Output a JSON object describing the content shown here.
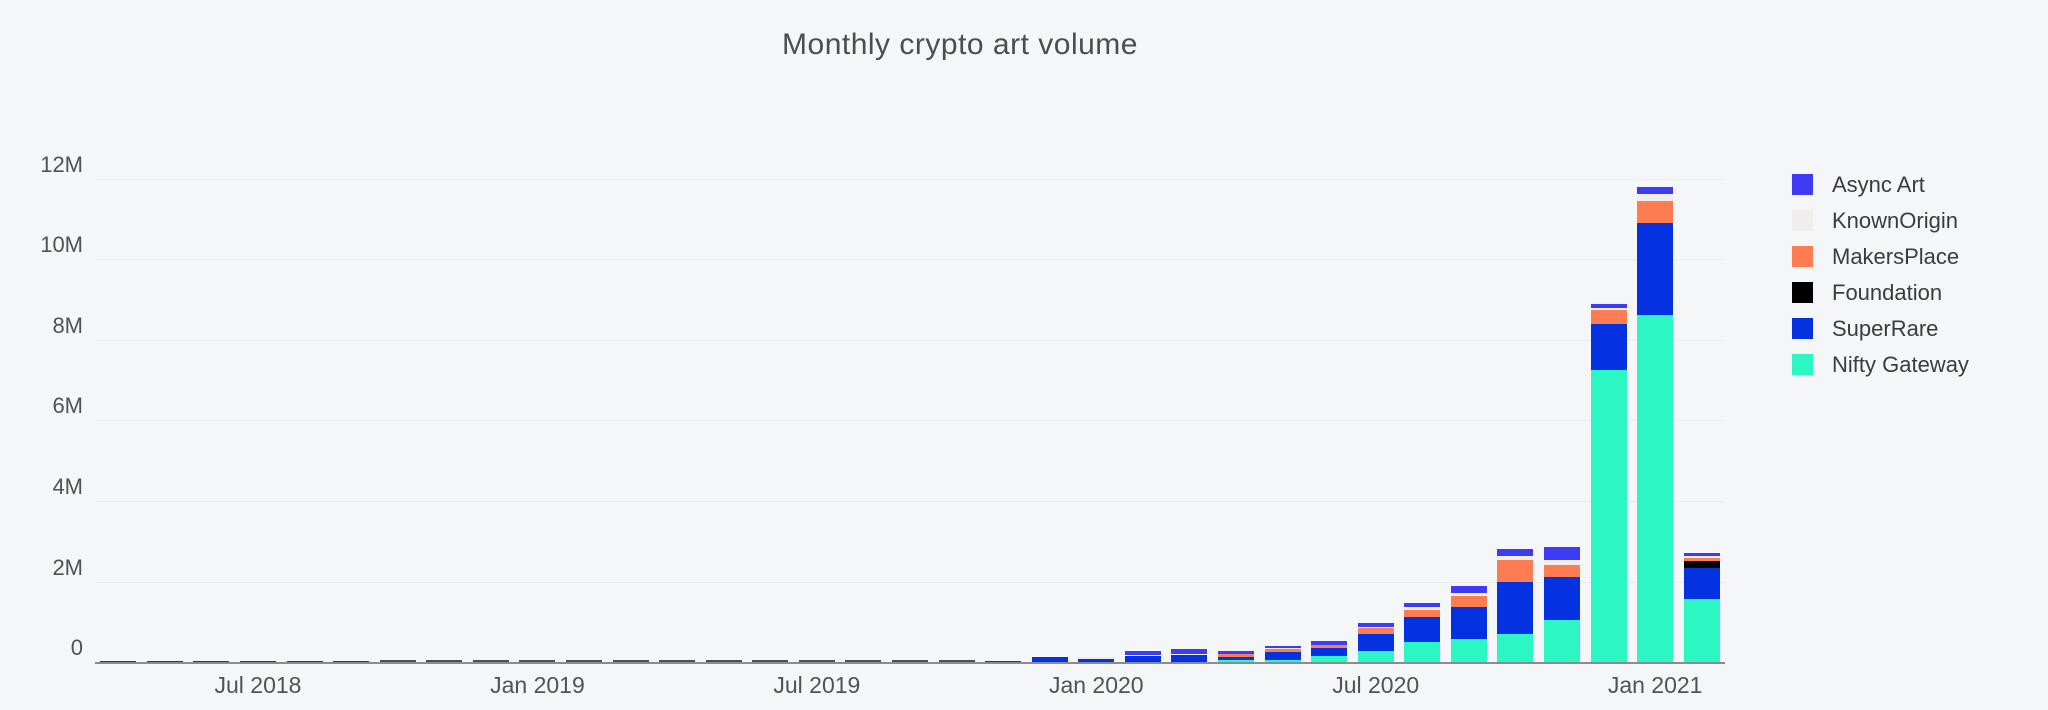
{
  "title": "Monthly crypto art volume",
  "colors": {
    "background": "#f5f6f8",
    "gridline": "#e9ebee",
    "axis_line": "#898c91",
    "tick_text": "#525252",
    "title_text": "#4d4d4d",
    "tiny_bar_dash": "#4b4f58"
  },
  "chart_data": {
    "type": "bar",
    "stacked": true,
    "title": "Monthly crypto art volume",
    "xlabel": "",
    "ylabel": "",
    "ylim": [
      0,
      12.42
    ],
    "grid": true,
    "legend_position": "right",
    "categories": [
      "Apr 2018",
      "May 2018",
      "Jun 2018",
      "Jul 2018",
      "Aug 2018",
      "Sep 2018",
      "Oct 2018",
      "Nov 2018",
      "Dec 2018",
      "Jan 2019",
      "Feb 2019",
      "Mar 2019",
      "Apr 2019",
      "May 2019",
      "Jun 2019",
      "Jul 2019",
      "Aug 2019",
      "Sep 2019",
      "Oct 2019",
      "Nov 2019",
      "Dec 2019",
      "Jan 2020",
      "Feb 2020",
      "Mar 2020",
      "Apr 2020",
      "May 2020",
      "Jun 2020",
      "Jul 2020",
      "Aug 2020",
      "Sep 2020",
      "Oct 2020",
      "Nov 2020",
      "Dec 2020",
      "Jan 2021",
      "Feb 2021"
    ],
    "units": "millions USD",
    "series": [
      {
        "name": "Nifty Gateway",
        "color": "#2cf6c3",
        "values": [
          0,
          0,
          0,
          0,
          0,
          0,
          0,
          0,
          0,
          0,
          0,
          0,
          0,
          0,
          0,
          0,
          0,
          0,
          0,
          0,
          0,
          0,
          0,
          0.03,
          0.07,
          0.07,
          0.18,
          0.31,
          0.52,
          0.59,
          0.71,
          1.07,
          7.28,
          8.64,
          1.58
        ]
      },
      {
        "name": "SuperRare",
        "color": "#0432e1",
        "values": [
          0.05,
          0.05,
          0.05,
          0.06,
          0.05,
          0.05,
          0.02,
          0.02,
          0.02,
          0.02,
          0.02,
          0.02,
          0.02,
          0.02,
          0.02,
          0.02,
          0.02,
          0.02,
          0.02,
          0.05,
          0.16,
          0.1,
          0.17,
          0.17,
          0.09,
          0.21,
          0.2,
          0.41,
          0.63,
          0.8,
          1.31,
          1.07,
          1.15,
          2.3,
          0.77
        ]
      },
      {
        "name": "Foundation",
        "color": "#000000",
        "values": [
          0,
          0,
          0,
          0,
          0,
          0,
          0,
          0,
          0,
          0,
          0,
          0,
          0,
          0,
          0,
          0,
          0,
          0,
          0,
          0,
          0,
          0,
          0,
          0,
          0,
          0,
          0,
          0,
          0,
          0,
          0,
          0,
          0,
          0,
          0.19
        ]
      },
      {
        "name": "MakersPlace",
        "color": "#fd7c52",
        "values": [
          0,
          0,
          0,
          0,
          0,
          0,
          0,
          0,
          0,
          0,
          0,
          0,
          0,
          0,
          0,
          0,
          0,
          0,
          0,
          0,
          0,
          0,
          0,
          0,
          0.06,
          0.06,
          0.08,
          0.15,
          0.16,
          0.28,
          0.55,
          0.3,
          0.33,
          0.54,
          0.07
        ]
      },
      {
        "name": "KnownOrigin",
        "color": "#f0eeea",
        "values": [
          0,
          0,
          0,
          0,
          0,
          0,
          0,
          0,
          0,
          0,
          0,
          0,
          0,
          0,
          0,
          0,
          0,
          0,
          0,
          0,
          0,
          0.05,
          0.02,
          0.03,
          0,
          0.02,
          0,
          0.02,
          0.07,
          0.08,
          0.08,
          0.11,
          0.07,
          0.17,
          0.04
        ]
      },
      {
        "name": "Async Art",
        "color": "#3d3bf3",
        "values": [
          0,
          0,
          0,
          0,
          0,
          0,
          0,
          0,
          0,
          0,
          0,
          0,
          0,
          0,
          0,
          0,
          0,
          0,
          0,
          0,
          0,
          0,
          0.11,
          0.11,
          0.07,
          0.06,
          0.08,
          0.1,
          0.12,
          0.17,
          0.19,
          0.33,
          0.1,
          0.17,
          0.08
        ]
      }
    ],
    "tiny_bar_indices": [
      6,
      7,
      8,
      9,
      10,
      11,
      12,
      13,
      14,
      15,
      16,
      17,
      18
    ],
    "y_ticks": [
      {
        "value": 0,
        "label": "0"
      },
      {
        "value": 2,
        "label": "2M"
      },
      {
        "value": 4,
        "label": "4M"
      },
      {
        "value": 6,
        "label": "6M"
      },
      {
        "value": 8,
        "label": "8M"
      },
      {
        "value": 10,
        "label": "10M"
      },
      {
        "value": 12,
        "label": "12M"
      }
    ],
    "x_ticks": [
      {
        "index": 3,
        "label": "Jul 2018"
      },
      {
        "index": 9,
        "label": "Jan 2019"
      },
      {
        "index": 15,
        "label": "Jul 2019"
      },
      {
        "index": 21,
        "label": "Jan 2020"
      },
      {
        "index": 27,
        "label": "Jul 2020"
      },
      {
        "index": 33,
        "label": "Jan 2021"
      }
    ],
    "legend": {
      "items": [
        {
          "label": "Async Art",
          "color": "#3d3bf3"
        },
        {
          "label": "KnownOrigin",
          "color": "#f0eeea"
        },
        {
          "label": "MakersPlace",
          "color": "#fd7c52"
        },
        {
          "label": "Foundation",
          "color": "#000000"
        },
        {
          "label": "SuperRare",
          "color": "#0432e1"
        },
        {
          "label": "Nifty Gateway",
          "color": "#2cf6c3"
        }
      ]
    }
  }
}
